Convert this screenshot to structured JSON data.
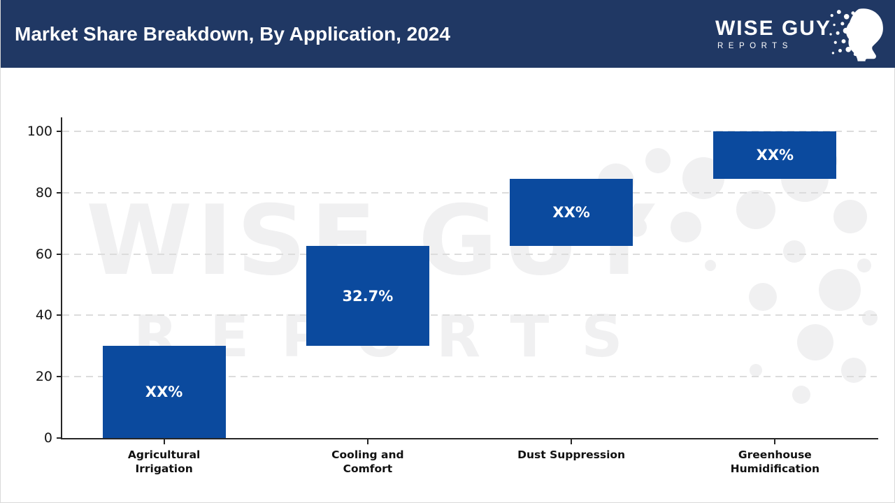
{
  "header": {
    "title": "Market Share Breakdown, By Application, 2024",
    "bg_color": "#203864",
    "logo": {
      "wordmark": "WISE GUY",
      "subtext": "REPORTS"
    }
  },
  "watermark": {
    "wordmark": "WISE GUY",
    "subtext": "REPORTS"
  },
  "chart_data": {
    "type": "bar",
    "variant": "floating_stacked_percentage",
    "title": "Market Share Breakdown, By Application, 2024",
    "categories": [
      "Agricultural Irrigation",
      "Cooling and Comfort",
      "Dust Suppression",
      "Greenhouse Humidification"
    ],
    "category_labels": [
      [
        "Agricultural",
        "Irrigation"
      ],
      [
        "Cooling and",
        "Comfort"
      ],
      [
        "Dust Suppression"
      ],
      [
        "Greenhouse",
        "Humidification"
      ]
    ],
    "segments": [
      {
        "category": "Agricultural Irrigation",
        "start": 0,
        "end": 30,
        "label": "XX%"
      },
      {
        "category": "Cooling and Comfort",
        "start": 30,
        "end": 62.7,
        "label": "32.7%",
        "value": 32.7
      },
      {
        "category": "Dust Suppression",
        "start": 62.7,
        "end": 84.5,
        "label": "XX%"
      },
      {
        "category": "Greenhouse Humidification",
        "start": 84.5,
        "end": 100,
        "label": "XX%"
      }
    ],
    "ylim": [
      0,
      104.5
    ],
    "yticks": [
      0,
      20,
      40,
      60,
      80,
      100
    ],
    "grid": {
      "axis": "y",
      "style": "dashed",
      "color": "#dcdcdc"
    },
    "bar_color": "#0b4a9e",
    "bar_label_color": "#ffffff",
    "axis_color": "#262626",
    "xlabel": "",
    "ylabel": "",
    "legend": false
  }
}
